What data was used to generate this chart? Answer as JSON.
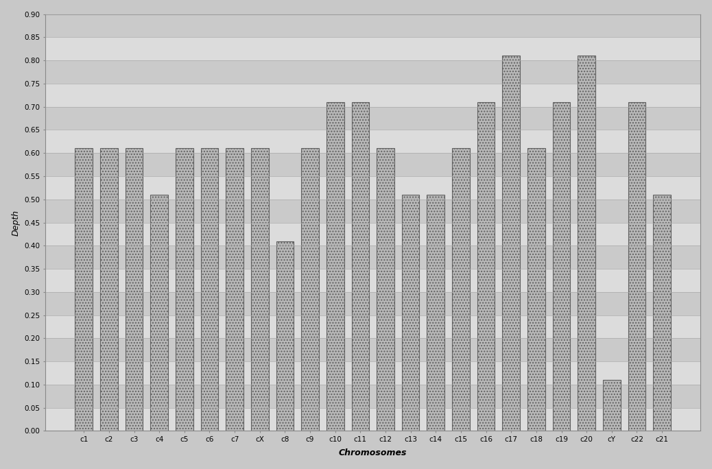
{
  "categories": [
    "c1",
    "c2",
    "c3",
    "c4",
    "c5",
    "c6",
    "c7",
    "cX",
    "c8",
    "c9",
    "c10",
    "c11",
    "c12",
    "c13",
    "c14",
    "c15",
    "c16",
    "c17",
    "c18",
    "c19",
    "c20",
    "cY",
    "c22",
    "c21"
  ],
  "values": [
    0.61,
    0.61,
    0.61,
    0.51,
    0.61,
    0.61,
    0.61,
    0.61,
    0.41,
    0.61,
    0.71,
    0.71,
    0.61,
    0.51,
    0.51,
    0.61,
    0.71,
    0.81,
    0.61,
    0.71,
    0.81,
    0.11,
    0.71,
    0.51
  ],
  "bar_color": "#b8b8b8",
  "bar_edge_color": "#606060",
  "ylabel": "Depth",
  "xlabel": "Chromosomes",
  "ylim": [
    0.0,
    0.9
  ],
  "yticks": [
    0.0,
    0.05,
    0.1,
    0.15,
    0.2,
    0.25,
    0.3,
    0.35,
    0.4,
    0.45,
    0.5,
    0.55,
    0.6,
    0.65,
    0.7,
    0.75,
    0.8,
    0.85,
    0.9
  ],
  "outer_bg": "#c8c8c8",
  "plot_bg_light": "#e0e0e0",
  "plot_bg_dark": "#c8c8c8",
  "band_colors": [
    "#dcdcdc",
    "#cacaca"
  ],
  "grid_color": "#aaaaaa",
  "axis_fontsize": 9,
  "tick_fontsize": 7.5,
  "ylabel_fontsize": 9
}
